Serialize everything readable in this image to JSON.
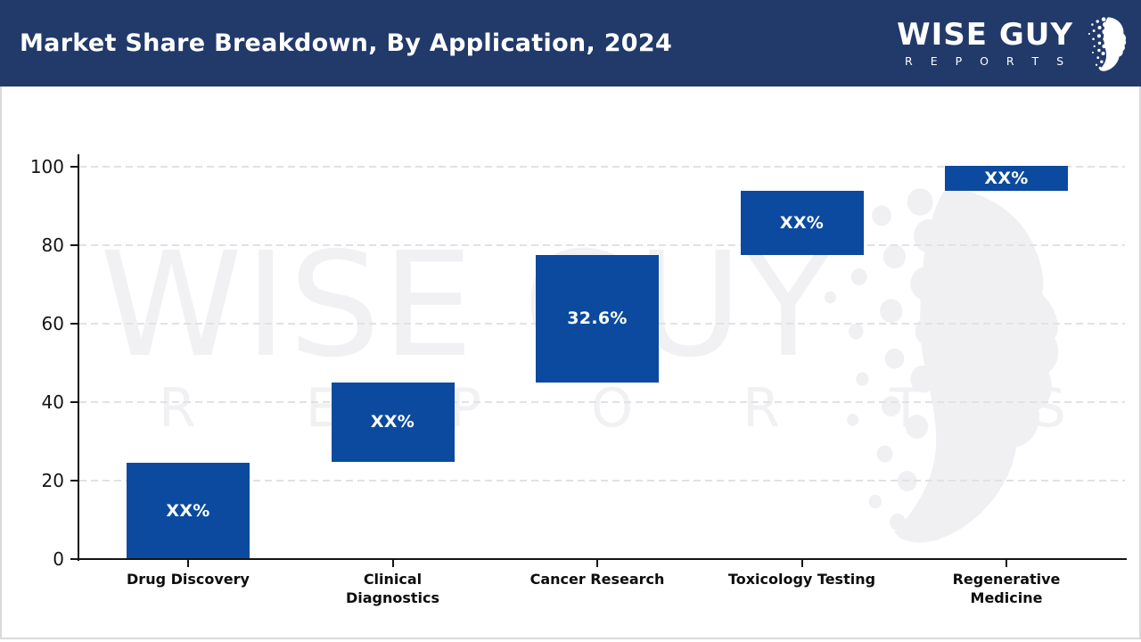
{
  "header": {
    "title": "Market Share Breakdown, By Application, 2024",
    "bg_color": "#213A6A",
    "logo": {
      "name": "WISE GUY",
      "tagline": "R E P O R T S"
    }
  },
  "watermark": {
    "name": "WISE GUY",
    "tagline": "R E P O R T S"
  },
  "chart_data": {
    "type": "bar",
    "subtype": "floating-segment-bars (cumulative percent breakdown)",
    "title": "Market Share Breakdown, By Application, 2024",
    "categories": [
      "Drug Discovery",
      "Clinical Diagnostics",
      "Cancer Research",
      "Toxicology Testing",
      "Regenerative Medicine"
    ],
    "categories_lines": [
      [
        "Drug Discovery"
      ],
      [
        "Clinical",
        "Diagnostics"
      ],
      [
        "Cancer Research"
      ],
      [
        "Toxicology Testing"
      ],
      [
        "Regenerative",
        "Medicine"
      ]
    ],
    "segments": [
      [
        0,
        24.5
      ],
      [
        24.8,
        45.1
      ],
      [
        45.0,
        77.6
      ],
      [
        77.6,
        93.9
      ],
      [
        93.9,
        100.3
      ]
    ],
    "values": [
      24.5,
      20.3,
      32.6,
      16.3,
      6.4
    ],
    "bar_labels": [
      "XX%",
      "XX%",
      "32.6%",
      "XX%",
      "XX%"
    ],
    "yticks": [
      0,
      20,
      40,
      60,
      80,
      100
    ],
    "ylim": [
      0,
      103
    ],
    "xlabel": "",
    "ylabel": "",
    "grid": true,
    "legend": false,
    "bar_color": "#0B4A9E",
    "axis_color": "#151515",
    "grid_color": "#e2e2e4",
    "watermark_color": "#f1f1f4"
  }
}
